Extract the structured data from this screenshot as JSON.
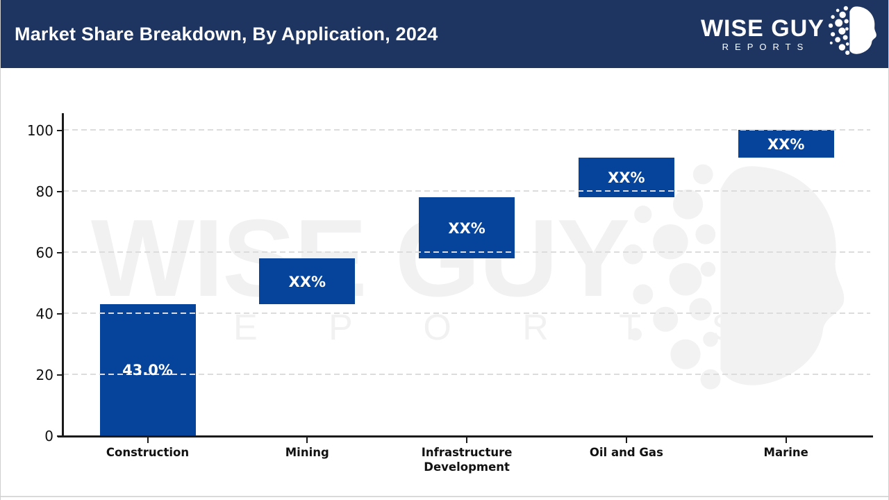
{
  "header": {
    "title": "Market Share Breakdown, By Application, 2024",
    "bg_color": "#1f3561",
    "logo": {
      "line1": "WISE GUY",
      "line2": "REPORTS"
    }
  },
  "watermark": {
    "line1": "WISE GUY",
    "line2": "R E P O R T S"
  },
  "chart_data": {
    "type": "bar",
    "subtype": "waterfall",
    "title": "Market Share Breakdown, By Application, 2024",
    "categories": [
      "Construction",
      "Mining",
      "Infrastructure Development",
      "Oil and Gas",
      "Marine"
    ],
    "bar_labels": [
      "43.0%",
      "XX%",
      "XX%",
      "XX%",
      "XX%"
    ],
    "segments": [
      {
        "start": 0,
        "end": 43
      },
      {
        "start": 43,
        "end": 58
      },
      {
        "start": 58,
        "end": 78
      },
      {
        "start": 78,
        "end": 91
      },
      {
        "start": 91,
        "end": 100
      }
    ],
    "values": [
      43,
      15,
      20,
      13,
      9
    ],
    "unit": "percent",
    "yticks": [
      0,
      20,
      40,
      60,
      80,
      100
    ],
    "ylim": [
      0,
      105
    ],
    "bar_color": "#06439a",
    "grid": "horizontal dashed",
    "grid_color": "#dcdcdc",
    "xlabel": "",
    "ylabel": ""
  }
}
